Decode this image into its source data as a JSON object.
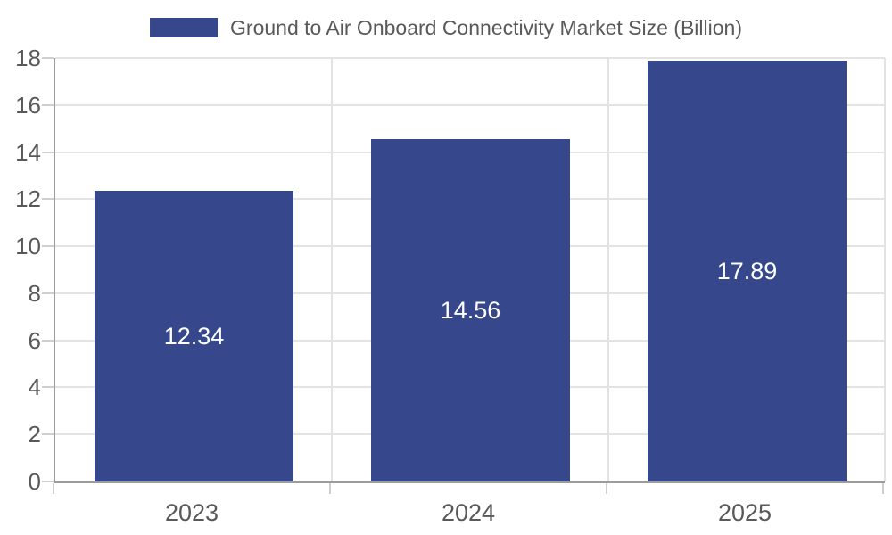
{
  "chart_data": {
    "type": "bar",
    "title": "Ground to Air Onboard Connectivity Market Size (Billion)",
    "categories": [
      "2023",
      "2024",
      "2025"
    ],
    "values": [
      12.34,
      14.56,
      17.89
    ],
    "value_labels": [
      "12.34",
      "14.56",
      "17.89"
    ],
    "series_name": "Ground to Air Onboard Connectivity Market Size (Billion)",
    "xlabel": "",
    "ylabel": "",
    "ylim": [
      0,
      18
    ],
    "ytick_step": 2,
    "grid": true,
    "legend_position": "top",
    "colors": {
      "bar": "#36488B",
      "value_label_text": "#FFFFFF",
      "tick_text": "#595959",
      "legend_text": "#595959",
      "gridline": "#E3E3E3",
      "axis_line": "#9C9C9C",
      "tick_mark": "#CFCFCF",
      "background": "#FFFFFF"
    }
  }
}
